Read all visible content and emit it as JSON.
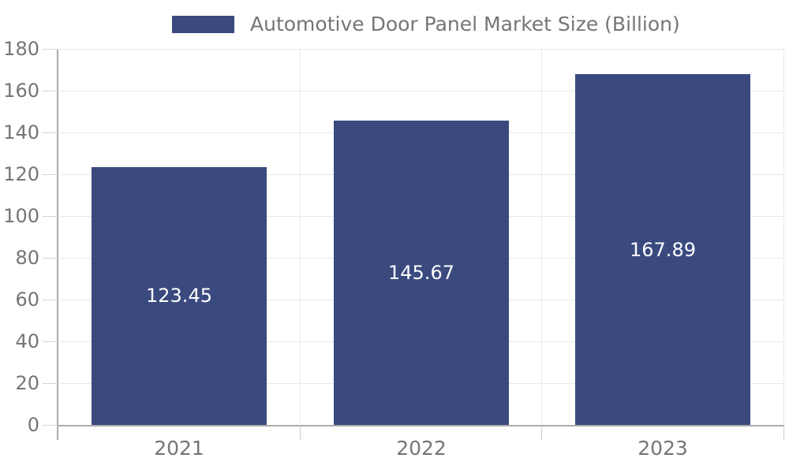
{
  "chart_data": {
    "type": "bar",
    "title": "",
    "legend": {
      "label": "Automotive Door Panel Market Size (Billion)",
      "position": "top-center"
    },
    "categories": [
      "2021",
      "2022",
      "2023"
    ],
    "series": [
      {
        "name": "Automotive Door Panel Market Size (Billion)",
        "values": [
          123.45,
          145.67,
          167.89
        ]
      }
    ],
    "value_labels": [
      "123.45",
      "145.67",
      "167.89"
    ],
    "value_label_position": "center-of-bar",
    "xlabel": "",
    "ylabel": "",
    "ylim": [
      0,
      180
    ],
    "ytick_step": 20,
    "ytick_labels": [
      "0",
      "20",
      "40",
      "60",
      "80",
      "100",
      "120",
      "140",
      "160",
      "180"
    ],
    "grid": true,
    "colors": {
      "bar": "#3A4A7E",
      "axis_line": "#ABABAB",
      "gridline": "#E8E8E8",
      "tick": "#CCCCCC",
      "tick_text": "#757575",
      "legend_text": "#757575",
      "value_label_text": "#FFFFFF",
      "background": "#FFFFFF"
    }
  }
}
